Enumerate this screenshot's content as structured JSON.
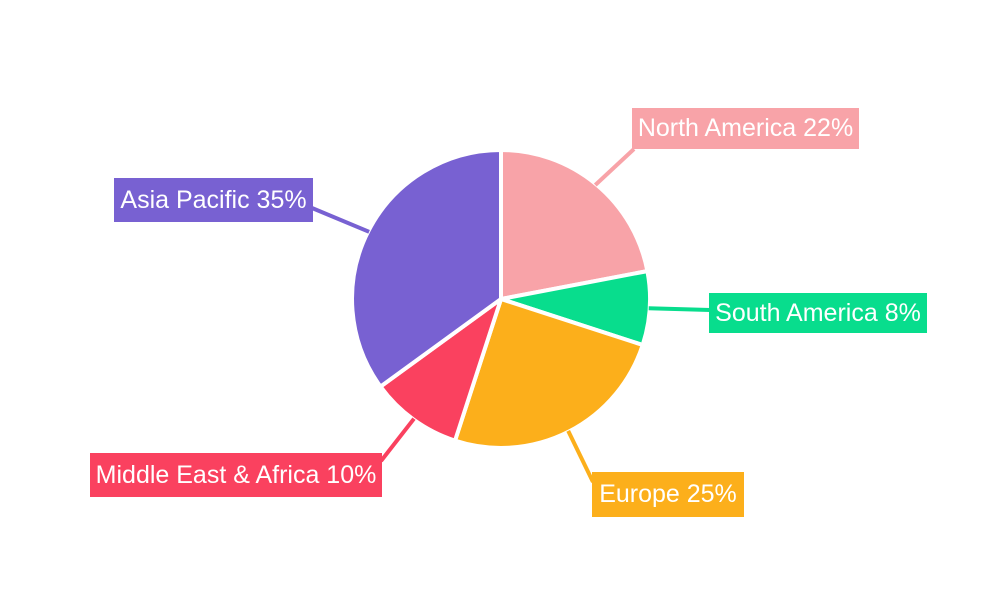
{
  "chart_data": {
    "type": "pie",
    "title": "",
    "unit": "%",
    "start_angle_deg": 0,
    "direction": "clockwise",
    "label_style": "callout-boxes-with-leader-lines",
    "legend_position": "none",
    "background": "#FFFFFF",
    "label_text_color": "#FFFFFF",
    "slice_gap_color": "#FFFFFF",
    "slices": [
      {
        "id": "north-america",
        "label": "North America",
        "value": 22,
        "display": "North America 22%",
        "color": "#F8A3A8"
      },
      {
        "id": "south-america",
        "label": "South America",
        "value": 8,
        "display": "South America 8%",
        "color": "#08DD8D"
      },
      {
        "id": "europe",
        "label": "Europe",
        "value": 25,
        "display": "Europe 25%",
        "color": "#FCAF1B"
      },
      {
        "id": "middle-east-africa",
        "label": "Middle East & Africa",
        "value": 10,
        "display": "Middle East & Africa 10%",
        "color": "#FA415F"
      },
      {
        "id": "asia-pacific",
        "label": "Asia Pacific",
        "value": 35,
        "display": "Asia Pacific 35%",
        "color": "#7861D2"
      }
    ]
  }
}
